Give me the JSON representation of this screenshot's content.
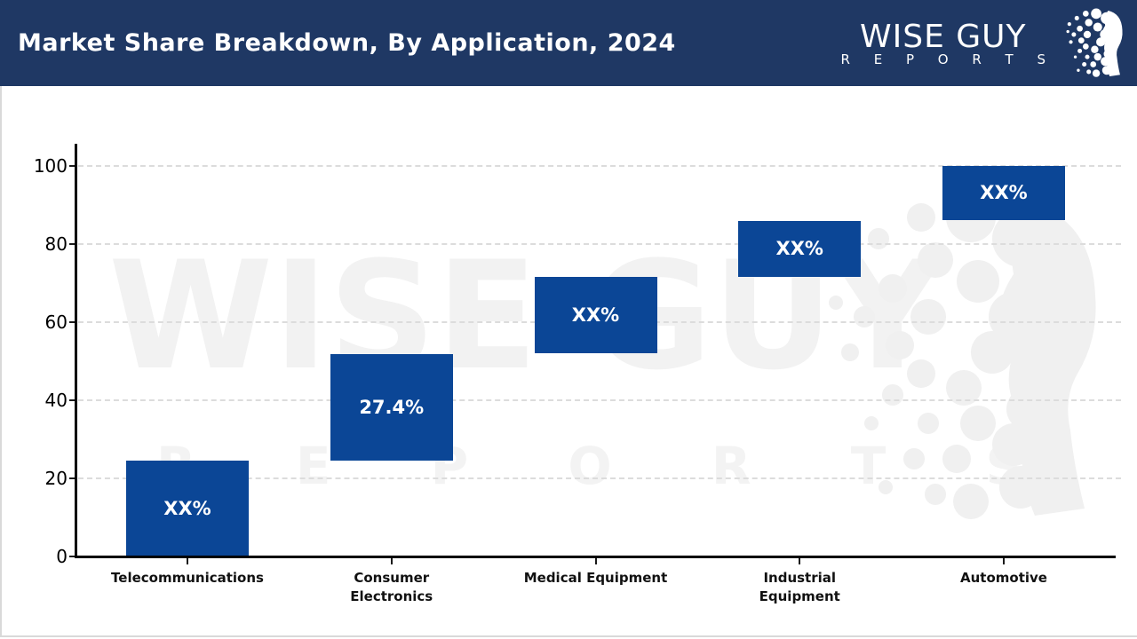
{
  "header": {
    "title": "Market Share Breakdown, By Application, 2024",
    "logo": {
      "name": "WISE GUY",
      "tagline": "R E P O R T S"
    }
  },
  "watermark": {
    "line1": "WISE GUY",
    "line2": "R E P O R T S"
  },
  "chart_data": {
    "type": "bar",
    "subtype": "waterfall",
    "title": "Market Share Breakdown, By Application, 2024",
    "categories": [
      "Telecommunications",
      "Consumer Electronics",
      "Medical Equipment",
      "Industrial Equipment",
      "Automotive"
    ],
    "category_display": [
      "Telecommunications",
      "Consumer\nElectronics",
      "Medical Equipment",
      "Industrial\nEquipment",
      "Automotive"
    ],
    "segments": [
      {
        "category": "Telecommunications",
        "start": 0,
        "end": 24.5,
        "label": "XX%"
      },
      {
        "category": "Consumer Electronics",
        "start": 24.5,
        "end": 51.9,
        "label": "27.4%"
      },
      {
        "category": "Medical Equipment",
        "start": 52.0,
        "end": 71.5,
        "label": "XX%"
      },
      {
        "category": "Industrial Equipment",
        "start": 71.7,
        "end": 86.0,
        "label": "XX%"
      },
      {
        "category": "Automotive",
        "start": 86.2,
        "end": 100.0,
        "label": "XX%"
      }
    ],
    "yticks": [
      0,
      20,
      40,
      60,
      80,
      100
    ],
    "ylim": [
      0,
      105
    ],
    "xlabel": "",
    "ylabel": "",
    "grid": "horizontal-dashed",
    "legend": "none",
    "colors": {
      "bar": "#0b4696",
      "bar_label": "#ffffff",
      "grid": "#dcdcdc",
      "axis": "#000000",
      "header_bg": "#1f3864",
      "header_text": "#ffffff",
      "watermark": "#f2f2f2"
    }
  }
}
